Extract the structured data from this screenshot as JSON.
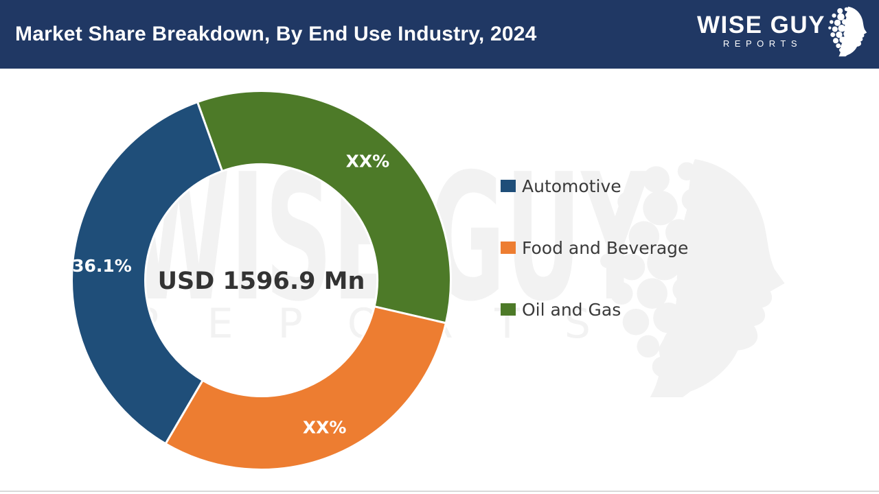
{
  "header": {
    "title": "Market Share Breakdown, By End Use Industry, 2024",
    "logo": {
      "line1": "WISE GUY",
      "line2": "REPORTS"
    }
  },
  "watermark": {
    "line1": "WISE GUY",
    "line2": "REPORTS"
  },
  "chart_data": {
    "type": "pie",
    "subtype": "donut",
    "title": "Market Share Breakdown, By End Use Industry, 2024",
    "center_label": "USD 1596.9 Mn",
    "total_value": 1596.9,
    "unit": "USD Mn",
    "start_angle_deg": -19.7,
    "legend_position": "right",
    "segments": [
      {
        "name": "Oil and Gas",
        "label": "XX%",
        "value_pct": 34.1,
        "color": "#4D7A28"
      },
      {
        "name": "Food and Beverage",
        "label": "XX%",
        "value_pct": 29.8,
        "color": "#ED7D31"
      },
      {
        "name": "Automotive",
        "label": "36.1%",
        "value_pct": 36.1,
        "color": "#1F4E79"
      }
    ],
    "legend": [
      {
        "label": "Automotive",
        "color": "#1F4E79"
      },
      {
        "label": "Food and Beverage",
        "color": "#ED7D31"
      },
      {
        "label": "Oil and Gas",
        "color": "#4D7A28"
      }
    ]
  },
  "colors": {
    "header_bg": "#203864",
    "center_text": "#333333",
    "legend_text": "#3A3A3A",
    "watermark": "#F2F2F2",
    "divider": "#D9D9D9"
  }
}
